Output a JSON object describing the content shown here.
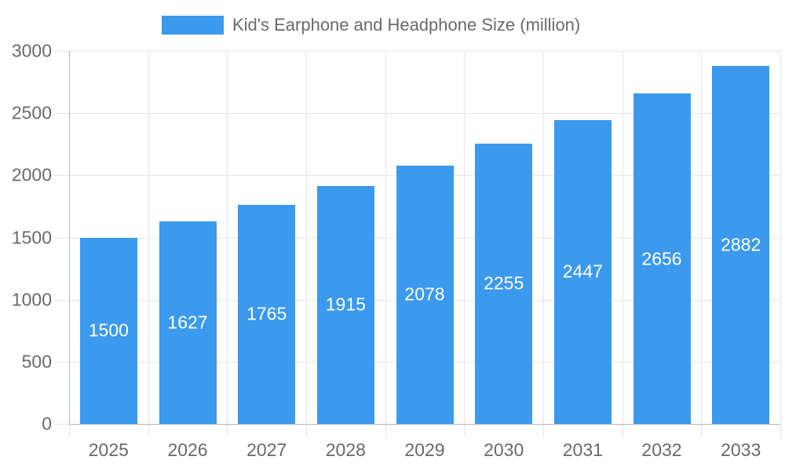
{
  "legend": {
    "label": "Kid's Earphone and Headphone Size (million)",
    "swatch_color": "#3B99EE"
  },
  "chart_data": {
    "type": "bar",
    "title": "Kid's Earphone and Headphone Size (million)",
    "categories": [
      "2025",
      "2026",
      "2027",
      "2028",
      "2029",
      "2030",
      "2031",
      "2032",
      "2033"
    ],
    "values": [
      1500,
      1627,
      1765,
      1915,
      2078,
      2255,
      2447,
      2656,
      2882
    ],
    "xlabel": "",
    "ylabel": "",
    "ylim": [
      0,
      3000
    ],
    "ytick_step": 500,
    "ytick_labels": [
      "0",
      "500",
      "1000",
      "1500",
      "2000",
      "2500",
      "3000"
    ],
    "grid": true,
    "legend_position": "top",
    "bar_color": "#3B99EE",
    "value_label_color": "#ffffff",
    "axis_text_color": "#696969",
    "grid_color": "#e4e4e4",
    "axis_line_color": "#b4b4b4"
  }
}
